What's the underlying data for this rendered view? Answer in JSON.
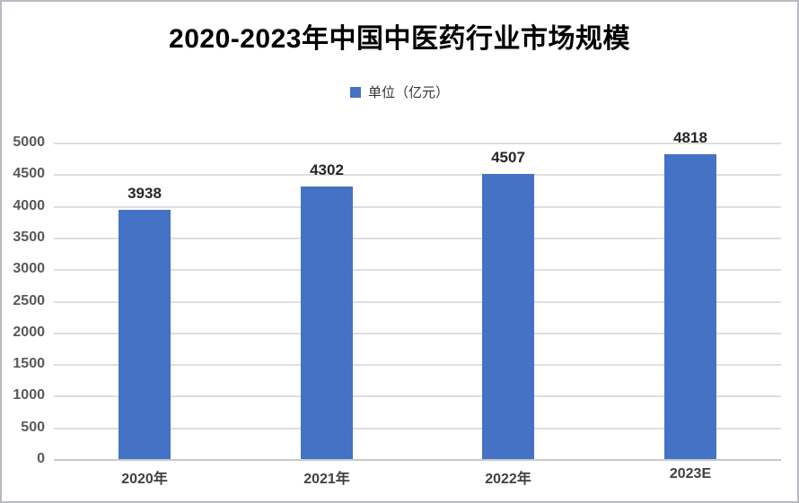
{
  "chart_data": {
    "type": "bar",
    "title": "2020-2023年中国中医药行业市场规模",
    "legend": "单位（亿元）",
    "legend_position": "top",
    "categories": [
      "2020年",
      "2021年",
      "2022年",
      "2023E"
    ],
    "values": [
      3938,
      4302,
      4507,
      4818
    ],
    "ylim": [
      0,
      5000
    ],
    "ytick_step": 500,
    "yticks": [
      0,
      500,
      1000,
      1500,
      2000,
      2500,
      3000,
      3500,
      4000,
      4500,
      5000
    ],
    "grid": true,
    "xlabel": "",
    "ylabel": "",
    "colors": {
      "bar": "#4472C4",
      "legend_swatch": "#4472C4",
      "gridline": "#DEDEDE",
      "axis_line": "#C9C9C9",
      "title_text": "#000000",
      "tick_text": "#595959",
      "value_label_text": "#262626",
      "category_text": "#404040",
      "background": "#FFFFFF",
      "frame_border": "#B7BBC3"
    }
  }
}
